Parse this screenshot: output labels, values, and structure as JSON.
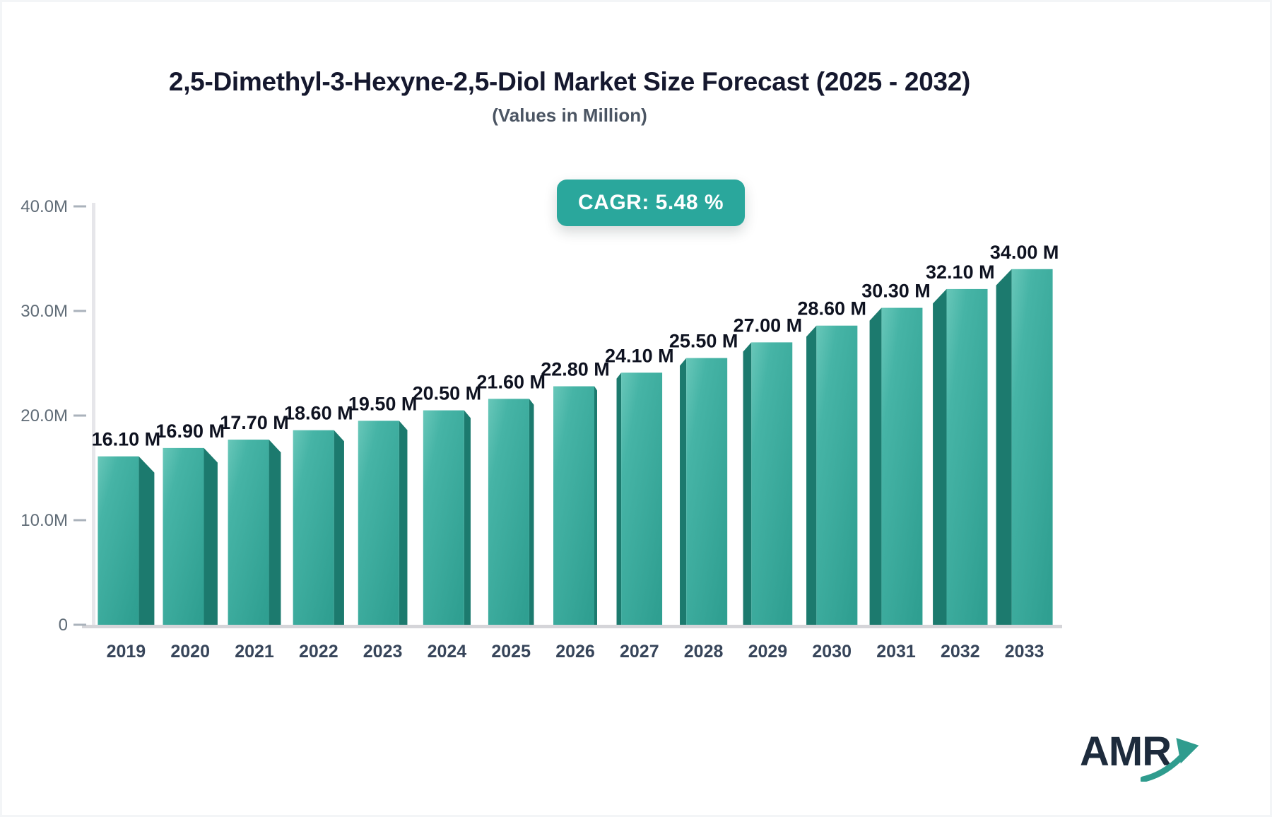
{
  "header": {
    "title": "2,5-Dimethyl-3-Hexyne-2,5-Diol Market Size Forecast (2025 - 2032)",
    "subtitle": "(Values in Million)",
    "cagr_label": "CAGR: 5.48 %"
  },
  "colors": {
    "badge_background": "#2aa79c",
    "bar_front_light": "#68c7b9",
    "bar_front_mid": "#46b4a6",
    "bar_front_dark": "#2f9f91",
    "bar_side": "#1c7a6e",
    "axis_line": "#e6e6ea",
    "baseline": "#d5d5d9",
    "tick": "#aab2bb",
    "axis_label": "#5f6b76",
    "year_label": "#37455a",
    "value_label": "#0e1220",
    "logo_text": "#1d2b3c",
    "logo_arrow": "#2f9c8e"
  },
  "chart_data": {
    "type": "bar",
    "title": "2,5-Dimethyl-3-Hexyne-2,5-Diol Market Size Forecast (2025 - 2032)",
    "subtitle": "(Values in Million)",
    "cagr_percent": 5.48,
    "categories": [
      "2019",
      "2020",
      "2021",
      "2022",
      "2023",
      "2024",
      "2025",
      "2026",
      "2027",
      "2028",
      "2029",
      "2030",
      "2031",
      "2032",
      "2033"
    ],
    "values": [
      16.1,
      16.9,
      17.7,
      18.6,
      19.5,
      20.5,
      21.6,
      22.8,
      24.1,
      25.5,
      27.0,
      28.6,
      30.3,
      32.1,
      34.0
    ],
    "value_labels": [
      "16.10 M",
      "16.90 M",
      "17.70 M",
      "18.60 M",
      "19.50 M",
      "20.50 M",
      "21.60 M",
      "22.80 M",
      "24.10 M",
      "25.50 M",
      "27.00 M",
      "28.60 M",
      "30.30 M",
      "32.10 M",
      "34.00 M"
    ],
    "xlabel": "",
    "ylabel": "",
    "ylim": [
      0,
      40
    ],
    "ytick_values": [
      0,
      10,
      20,
      30,
      40
    ],
    "ytick_labels": [
      "0",
      "10.0M",
      "20.0M",
      "30.0M",
      "40.0M"
    ],
    "grid": false,
    "legend": "none",
    "bar_style": "pseudo-3d"
  },
  "logo": {
    "text": "AMR"
  }
}
